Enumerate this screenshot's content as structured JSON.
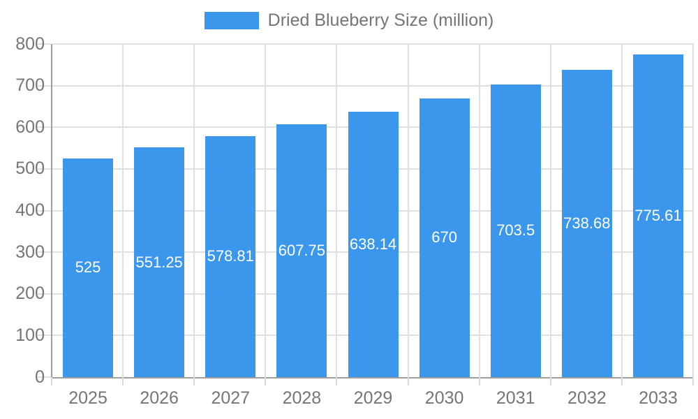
{
  "chart_data": {
    "type": "bar",
    "title": "",
    "xlabel": "",
    "ylabel": "",
    "categories": [
      "2025",
      "2026",
      "2027",
      "2028",
      "2029",
      "2030",
      "2031",
      "2032",
      "2033"
    ],
    "series": [
      {
        "name": "Dried Blueberry Size (million)",
        "values": [
          525,
          551.25,
          578.81,
          607.75,
          638.14,
          670,
          703.5,
          738.68,
          775.61
        ]
      }
    ],
    "value_labels": [
      "525",
      "551.25",
      "578.81",
      "607.75",
      "638.14",
      "670",
      "703.5",
      "738.68",
      "775.61"
    ],
    "ylim": [
      0,
      800
    ],
    "ytick_interval": 100,
    "ytick_labels": [
      "0",
      "100",
      "200",
      "300",
      "400",
      "500",
      "600",
      "700",
      "800"
    ],
    "grid": "horizontal and vertical category boundaries",
    "legend_position": "top-center",
    "colors": {
      "bar": "#3b97ec",
      "axis_text": "#757575",
      "axis_line": "#9e9e9e",
      "grid_line": "#e0e0e0",
      "tick_line": "#d9d9d9",
      "bar_label_text": "#ffffff",
      "background": "#ffffff"
    }
  }
}
